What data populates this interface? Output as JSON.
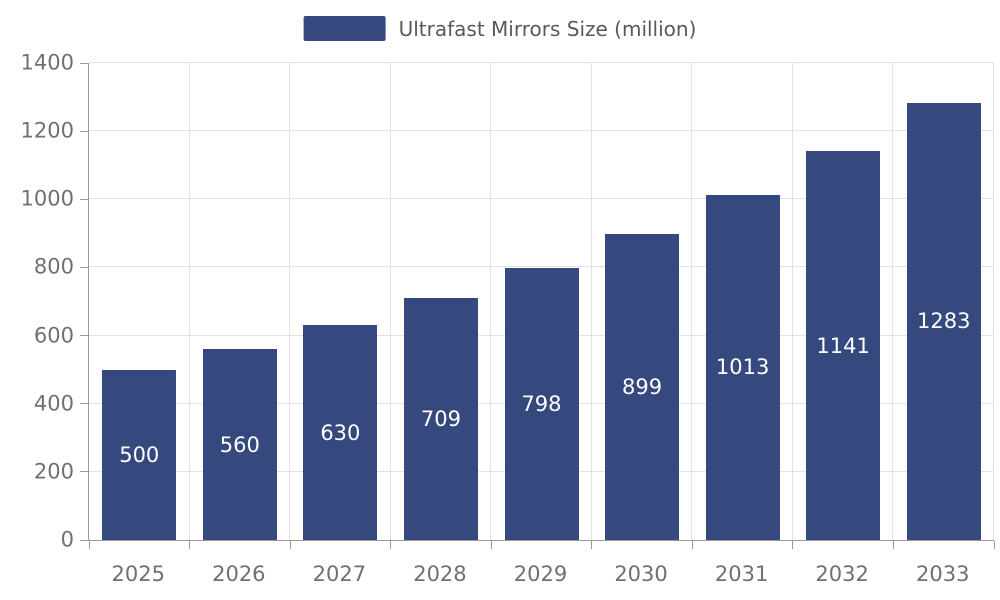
{
  "chart_data": {
    "type": "bar",
    "title": "Ultrafast Mirrors Size (million)",
    "categories": [
      "2025",
      "2026",
      "2027",
      "2028",
      "2029",
      "2030",
      "2031",
      "2032",
      "2033"
    ],
    "values": [
      500,
      560,
      630,
      709,
      798,
      899,
      1013,
      1141,
      1283
    ],
    "xlabel": "",
    "ylabel": "",
    "ylim": [
      0,
      1400
    ],
    "yticks": [
      0,
      200,
      400,
      600,
      800,
      1000,
      1200,
      1400
    ],
    "grid": true,
    "legend_position": "top-center",
    "value_labels": "inside-center",
    "colors": {
      "bar": "#35497f",
      "value_text": "#ffffff",
      "axis": "#999999",
      "grid": "#e2e2e2",
      "tick_text": "#6e7079",
      "legend_text": "#595959",
      "background": "#ffffff"
    }
  }
}
